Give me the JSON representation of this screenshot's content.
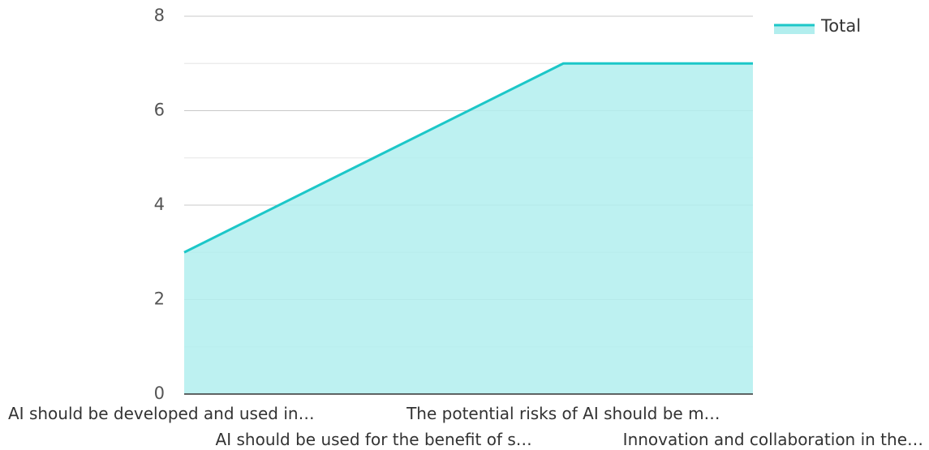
{
  "chart_data": {
    "type": "area",
    "categories": [
      "AI should be developed and used in…",
      "AI should be used for the benefit of s…",
      "The potential risks of AI should be m…",
      "Innovation and collaboration in the…"
    ],
    "series": [
      {
        "name": "Total",
        "values": [
          3,
          5,
          7,
          7
        ]
      }
    ],
    "ylim": [
      0,
      8
    ],
    "yticks": [
      "0",
      "2",
      "4",
      "6",
      "8"
    ],
    "grid": true,
    "legend": "top-right",
    "colors": {
      "line": "#1cc7c8",
      "fill": "#b2eeee",
      "grid_major": "#c8c8c8",
      "grid_minor": "#e6e6e6",
      "axis": "#333333"
    }
  }
}
